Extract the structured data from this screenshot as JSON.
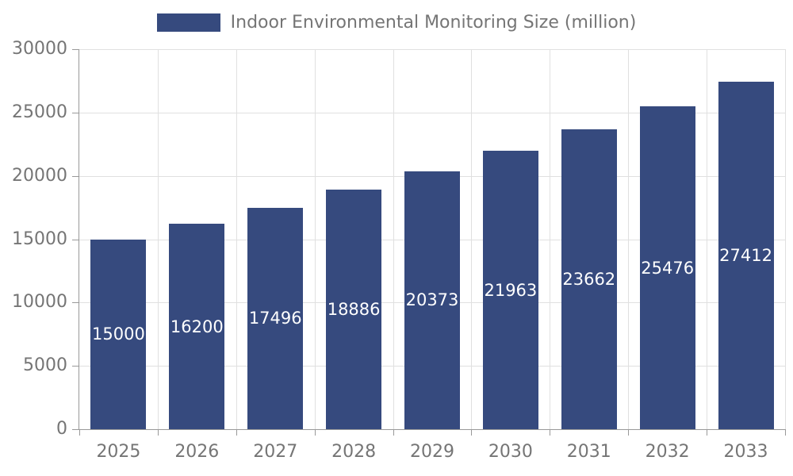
{
  "chart_data": {
    "type": "bar",
    "title": "",
    "legend_label": "Indoor Environmental Monitoring Size (million)",
    "legend_position": "top",
    "categories": [
      "2025",
      "2026",
      "2027",
      "2028",
      "2029",
      "2030",
      "2031",
      "2032",
      "2033"
    ],
    "series": [
      {
        "name": "Indoor Environmental Monitoring Size (million)",
        "values": [
          15000,
          16200,
          17496,
          18886,
          20373,
          21963,
          23662,
          25476,
          27412
        ]
      }
    ],
    "bar_value_labels": [
      "15000",
      "16200",
      "17496",
      "18886",
      "20373",
      "21963",
      "23662",
      "25476",
      "27412"
    ],
    "xlabel": "",
    "ylabel": "",
    "ylim": [
      0,
      30000
    ],
    "ytick_interval": 5000,
    "ytick_labels": [
      "0",
      "5000",
      "10000",
      "15000",
      "20000",
      "25000",
      "30000"
    ],
    "grid": true,
    "colors": {
      "bar": "#364A7E",
      "bar_value_text": "#ffffff",
      "axis_line": "#999999",
      "grid_line": "#e0e0e0",
      "axis_text": "#757575",
      "legend_text": "#757575",
      "background": "#ffffff"
    }
  }
}
